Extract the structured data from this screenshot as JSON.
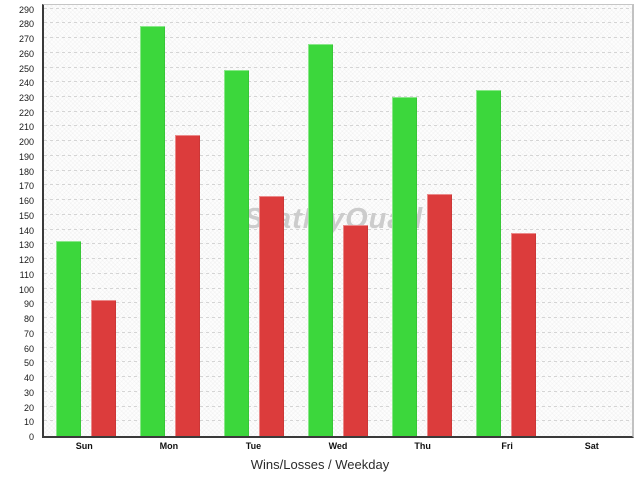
{
  "chart_data": {
    "type": "bar",
    "title": "Wins/Losses / Weekday",
    "categories": [
      "Sun",
      "Mon",
      "Tue",
      "Wed",
      "Thu",
      "Fri",
      "Sat"
    ],
    "series": [
      {
        "name": "Wins",
        "color": "#3cd73c",
        "values": [
          132,
          278,
          248,
          266,
          230,
          235,
          null
        ]
      },
      {
        "name": "Losses",
        "color": "#dc3c3c",
        "values": [
          92,
          204,
          163,
          143,
          164,
          138,
          null
        ]
      }
    ],
    "ylim": [
      0,
      290
    ],
    "y_tick_step": 10,
    "grid": "horizontal-dashed",
    "legend_position": "none",
    "watermark": "StatMyQuad",
    "axis_colors": {
      "grid": "#d4d4d4",
      "axis_dark": "#3a3a3a",
      "border_light": "#c2c2c2"
    }
  },
  "axis": {
    "y_ticks": [
      0,
      10,
      20,
      30,
      40,
      50,
      60,
      70,
      80,
      90,
      100,
      110,
      120,
      130,
      140,
      150,
      160,
      170,
      180,
      190,
      200,
      210,
      220,
      230,
      240,
      250,
      260,
      270,
      280,
      290
    ]
  }
}
